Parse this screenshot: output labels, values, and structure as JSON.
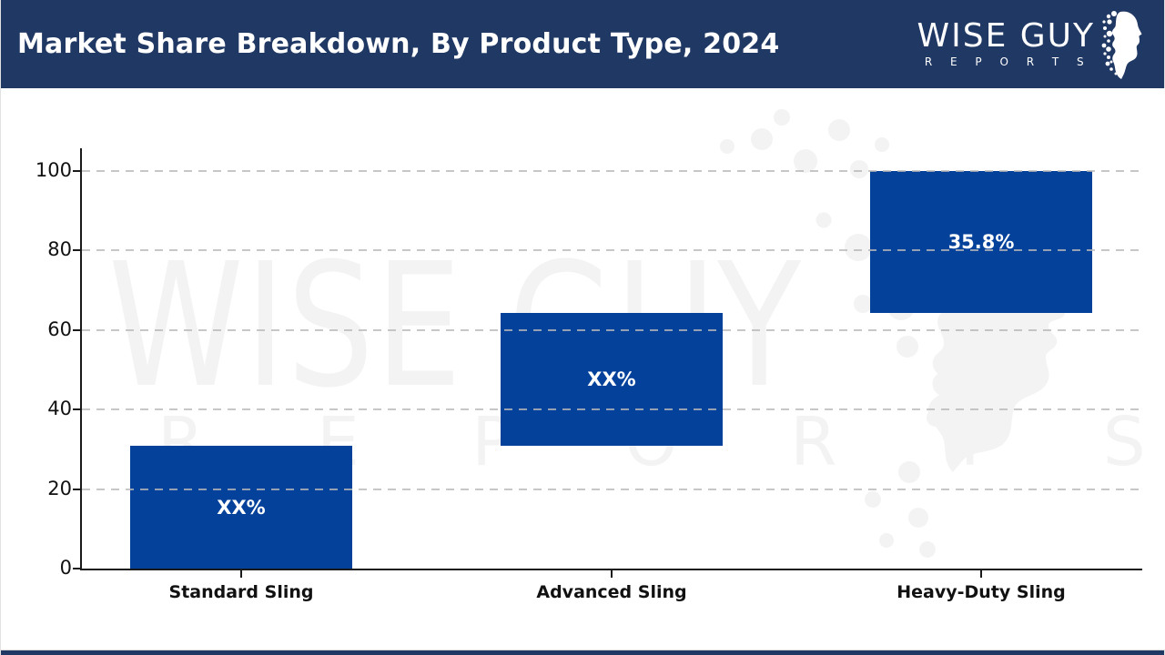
{
  "header": {
    "title": "Market Share Breakdown, By Product Type, 2024",
    "logo": {
      "line1": "WISE GUY",
      "line2": "R E P O R T S"
    }
  },
  "watermark": {
    "line1": "WISE GUY",
    "line2": "R E P O R T S"
  },
  "colors": {
    "header_bg": "#203864",
    "bar": "#04419a",
    "grid": "#c9c9c9",
    "axis": "#1a1a1a",
    "watermark": "#f3f3f3",
    "bar_label": "#ffffff"
  },
  "chart_data": {
    "type": "bar",
    "subtype": "floating stacked segments (waterfall style), segments sum to 100%",
    "title": "Market Share Breakdown, By Product Type, 2024",
    "categories": [
      "Standard Sling",
      "Advanced Sling",
      "Heavy-Duty Sling"
    ],
    "bars": [
      {
        "category": "Standard Sling",
        "start": 0,
        "end": 30.8,
        "value": 30.8,
        "label": "XX%"
      },
      {
        "category": "Advanced Sling",
        "start": 30.8,
        "end": 64.2,
        "value": 33.4,
        "label": "XX%"
      },
      {
        "category": "Heavy-Duty Sling",
        "start": 64.2,
        "end": 100,
        "value": 35.8,
        "label": "35.8%"
      }
    ],
    "yticks": [
      0,
      20,
      40,
      60,
      80,
      100
    ],
    "ylim": [
      0,
      105.7
    ],
    "xlabel": "",
    "ylabel": "",
    "grid": "horizontal dashed, drawn over bars",
    "legend": "none"
  }
}
